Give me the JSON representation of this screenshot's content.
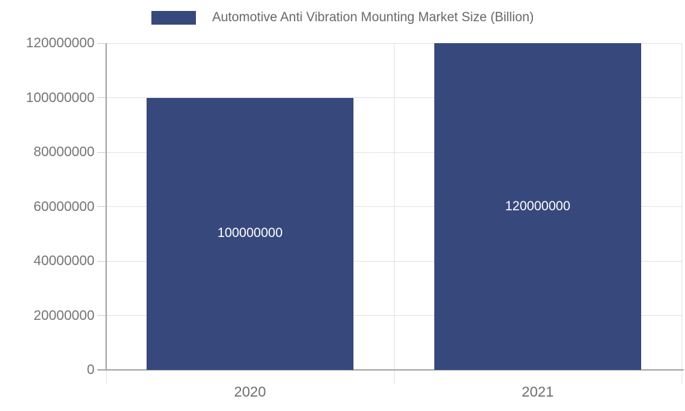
{
  "chart_data": {
    "type": "bar",
    "title": "",
    "legend": "Automotive Anti Vibration Mounting Market Size (Billion)",
    "legend_position": "top-center",
    "categories": [
      "2020",
      "2021"
    ],
    "values": [
      100000000,
      120000000
    ],
    "bar_value_labels": [
      "100000000",
      "120000000"
    ],
    "xlabel": "",
    "ylabel": "",
    "ylim": [
      0,
      120000000
    ],
    "yticks": [
      0,
      20000000,
      40000000,
      60000000,
      80000000,
      100000000,
      120000000
    ],
    "ytick_labels": [
      "0",
      "20000000",
      "40000000",
      "60000000",
      "80000000",
      "100000000",
      "120000000"
    ],
    "grid": true,
    "colors": {
      "bar": "#37487C",
      "bar_label_text": "#ffffff",
      "grid_line": "#e3e3e3",
      "tick_line": "#d0d0d0",
      "axis_line": "#a7a7a7",
      "y_tick_label_text": "#757575",
      "x_tick_label_text": "#6e6e6e",
      "legend_text": "#676767",
      "background": "#ffffff"
    }
  }
}
